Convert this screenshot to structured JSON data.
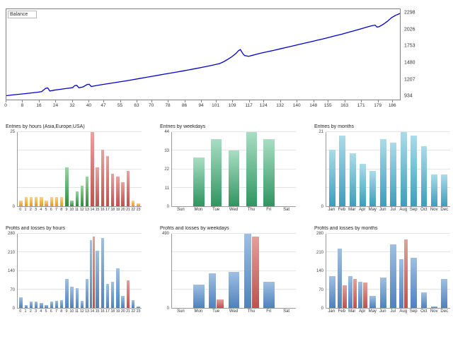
{
  "chart_data": {
    "balance": {
      "type": "line",
      "label": "Balance",
      "color": "#0000cc",
      "x_range": [
        0,
        190
      ],
      "y_range": [
        870,
        2370
      ],
      "x_ticks": [
        0,
        8,
        16,
        24,
        32,
        40,
        47,
        55,
        63,
        70,
        78,
        86,
        94,
        101,
        109,
        117,
        124,
        132,
        140,
        148,
        155,
        163,
        171,
        179,
        186
      ],
      "y_ticks": [
        934,
        1207,
        1480,
        1753,
        2026,
        2298
      ],
      "points": [
        [
          0,
          934
        ],
        [
          3,
          948
        ],
        [
          6,
          958
        ],
        [
          9,
          968
        ],
        [
          12,
          980
        ],
        [
          15,
          992
        ],
        [
          17,
          1002
        ],
        [
          19,
          1058
        ],
        [
          20,
          1062
        ],
        [
          21,
          1012
        ],
        [
          23,
          1026
        ],
        [
          26,
          1040
        ],
        [
          29,
          1055
        ],
        [
          32,
          1068
        ],
        [
          33,
          1102
        ],
        [
          34,
          1106
        ],
        [
          35,
          1066
        ],
        [
          37,
          1080
        ],
        [
          39,
          1120
        ],
        [
          40,
          1124
        ],
        [
          41,
          1086
        ],
        [
          43,
          1100
        ],
        [
          46,
          1118
        ],
        [
          49,
          1134
        ],
        [
          52,
          1150
        ],
        [
          55,
          1166
        ],
        [
          58,
          1182
        ],
        [
          61,
          1200
        ],
        [
          64,
          1218
        ],
        [
          67,
          1236
        ],
        [
          70,
          1254
        ],
        [
          73,
          1272
        ],
        [
          76,
          1290
        ],
        [
          79,
          1308
        ],
        [
          82,
          1326
        ],
        [
          85,
          1344
        ],
        [
          88,
          1362
        ],
        [
          91,
          1382
        ],
        [
          94,
          1402
        ],
        [
          97,
          1422
        ],
        [
          100,
          1444
        ],
        [
          103,
          1468
        ],
        [
          105,
          1500
        ],
        [
          107,
          1540
        ],
        [
          109,
          1585
        ],
        [
          111,
          1640
        ],
        [
          112,
          1680
        ],
        [
          113,
          1700
        ],
        [
          114,
          1640
        ],
        [
          115,
          1600
        ],
        [
          117,
          1588
        ],
        [
          119,
          1606
        ],
        [
          121,
          1624
        ],
        [
          123,
          1642
        ],
        [
          126,
          1664
        ],
        [
          129,
          1686
        ],
        [
          132,
          1710
        ],
        [
          135,
          1734
        ],
        [
          138,
          1758
        ],
        [
          141,
          1782
        ],
        [
          144,
          1806
        ],
        [
          147,
          1830
        ],
        [
          150,
          1854
        ],
        [
          153,
          1878
        ],
        [
          156,
          1904
        ],
        [
          159,
          1930
        ],
        [
          162,
          1956
        ],
        [
          165,
          1984
        ],
        [
          168,
          2012
        ],
        [
          171,
          2042
        ],
        [
          174,
          2072
        ],
        [
          176,
          2092
        ],
        [
          178,
          2106
        ],
        [
          179,
          2072
        ],
        [
          180,
          2080
        ],
        [
          182,
          2120
        ],
        [
          184,
          2170
        ],
        [
          186,
          2230
        ],
        [
          188,
          2270
        ],
        [
          190,
          2298
        ]
      ]
    },
    "entries_hours": {
      "type": "bar",
      "title": "Entries by hours (Asia,Europe,USA)",
      "y_max": 25,
      "y_ticks": [
        0,
        25
      ],
      "categories": [
        "0",
        "1",
        "2",
        "3",
        "4",
        "5",
        "6",
        "7",
        "8",
        "9",
        "10",
        "11",
        "12",
        "13",
        "14",
        "15",
        "16",
        "17",
        "18",
        "19",
        "20",
        "21",
        "22",
        "23"
      ],
      "series": [
        {
          "name": "asia",
          "color": "#e8991c",
          "light": "#f8d58e",
          "values": [
            2,
            3,
            3,
            3,
            3,
            2,
            3,
            3,
            3,
            0,
            0,
            0,
            0,
            0,
            0,
            0,
            0,
            0,
            0,
            0,
            0,
            0,
            2,
            1
          ]
        },
        {
          "name": "europe",
          "color": "#2e8b3d",
          "light": "#97d6a1",
          "values": [
            0,
            0,
            0,
            0,
            0,
            0,
            0,
            0,
            0,
            13,
            2,
            5,
            7,
            10,
            0,
            0,
            0,
            0,
            0,
            0,
            0,
            0,
            0,
            0
          ]
        },
        {
          "name": "usa",
          "color": "#c0504d",
          "light": "#e7a49f",
          "values": [
            0,
            0,
            0,
            0,
            0,
            0,
            0,
            0,
            0,
            0,
            0,
            0,
            0,
            0,
            25,
            13,
            19,
            17,
            11,
            10,
            8,
            12,
            0,
            0
          ]
        }
      ]
    },
    "entries_weekdays": {
      "type": "bar",
      "title": "Entries by weekdays",
      "y_max": 44,
      "y_ticks": [
        0,
        11,
        22,
        33,
        44
      ],
      "categories": [
        "Sun",
        "Mon",
        "Tue",
        "Wed",
        "Thu",
        "Fri",
        "Sat"
      ],
      "series": [
        {
          "name": "entries",
          "color": "#2f9560",
          "light": "#a9dec4",
          "values": [
            0,
            29,
            40,
            33,
            44,
            40,
            0
          ]
        }
      ]
    },
    "entries_months": {
      "type": "bar",
      "title": "Entries by months",
      "y_max": 21,
      "y_ticks": [
        0,
        21
      ],
      "categories": [
        "Jan",
        "Feb",
        "Mar",
        "Apr",
        "May",
        "Jun",
        "Jul",
        "Aug",
        "Sep",
        "Oct",
        "Nov",
        "Dec"
      ],
      "series": [
        {
          "name": "entries",
          "color": "#3d9dbb",
          "light": "#abdcea",
          "values": [
            16,
            20,
            15,
            12,
            10,
            19,
            18,
            21,
            20,
            17,
            9,
            9
          ]
        }
      ]
    },
    "pl_hours": {
      "type": "bar",
      "title": "Profits and losses by hours",
      "y_max": 280,
      "y_ticks": [
        0,
        70,
        140,
        210,
        280
      ],
      "categories": [
        "0",
        "1",
        "2",
        "3",
        "4",
        "5",
        "6",
        "7",
        "8",
        "9",
        "10",
        "11",
        "12",
        "13",
        "14",
        "15",
        "16",
        "17",
        "18",
        "19",
        "20",
        "21",
        "22",
        "23"
      ],
      "series": [
        {
          "name": "profit",
          "color": "#4f81bd",
          "light": "#9fc0e2",
          "values": [
            40,
            12,
            25,
            25,
            18,
            12,
            25,
            28,
            30,
            110,
            80,
            75,
            28,
            110,
            255,
            215,
            265,
            90,
            100,
            150,
            45,
            0,
            30,
            5
          ]
        },
        {
          "name": "loss",
          "color": "#c0504d",
          "light": "#e3a09b",
          "values": [
            0,
            0,
            0,
            0,
            0,
            0,
            0,
            0,
            0,
            0,
            0,
            0,
            0,
            0,
            270,
            0,
            0,
            0,
            0,
            0,
            0,
            105,
            0,
            0
          ]
        }
      ]
    },
    "pl_weekdays": {
      "type": "bar",
      "title": "Profits and losses by weekdays",
      "y_max": 490,
      "y_ticks": [
        0,
        490
      ],
      "categories": [
        "Sun",
        "Mon",
        "Tue",
        "Wed",
        "Thu",
        "Fri",
        "Sat"
      ],
      "series": [
        {
          "name": "profit",
          "color": "#4f81bd",
          "light": "#9fc0e2",
          "values": [
            0,
            155,
            230,
            240,
            490,
            175,
            0
          ]
        },
        {
          "name": "loss",
          "color": "#c0504d",
          "light": "#e3a09b",
          "values": [
            0,
            0,
            55,
            0,
            470,
            0,
            0
          ]
        }
      ]
    },
    "pl_months": {
      "type": "bar",
      "title": "Profits and losses by months",
      "y_max": 280,
      "y_ticks": [
        0,
        70,
        140,
        210,
        280
      ],
      "categories": [
        "Jan",
        "Feb",
        "Mar",
        "Apr",
        "May",
        "Jun",
        "Jul",
        "Aug",
        "Sep",
        "Oct",
        "Nov",
        "Dec"
      ],
      "series": [
        {
          "name": "profit",
          "color": "#4f81bd",
          "light": "#9fc0e2",
          "values": [
            120,
            225,
            120,
            100,
            45,
            115,
            240,
            185,
            190,
            60,
            5,
            110
          ]
        },
        {
          "name": "loss",
          "color": "#c0504d",
          "light": "#e3a09b",
          "values": [
            0,
            85,
            110,
            95,
            0,
            0,
            0,
            260,
            0,
            0,
            0,
            0
          ]
        }
      ]
    }
  }
}
